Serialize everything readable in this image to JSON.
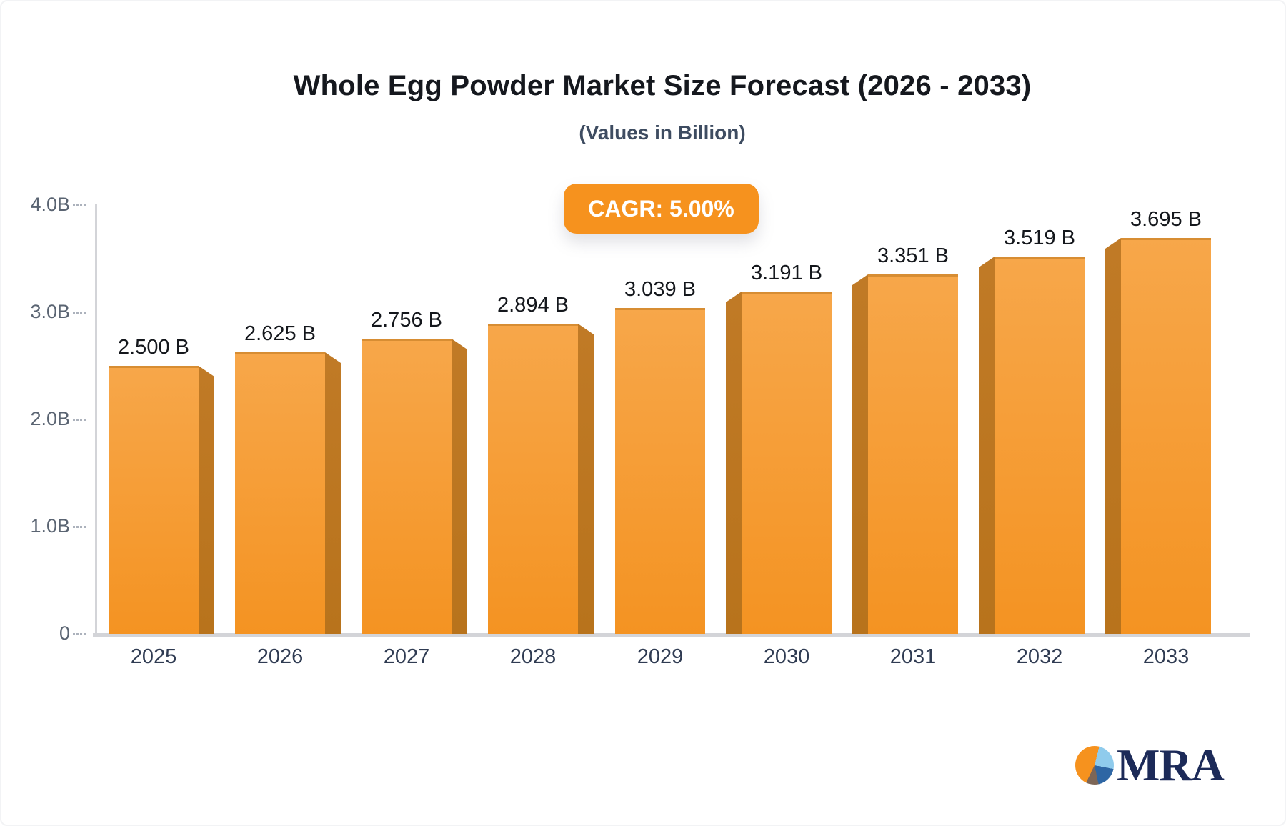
{
  "header": {
    "title": "Whole Egg Powder Market Size Forecast (2026 - 2033)",
    "subtitle": "(Values in Billion)"
  },
  "badge": {
    "label": "CAGR: 5.00%"
  },
  "chart_data": {
    "type": "bar",
    "title": "Whole Egg Powder Market Size Forecast (2026 - 2033)",
    "subtitle": "(Values in Billion)",
    "annotation": "CAGR: 5.00%",
    "categories": [
      "2025",
      "2026",
      "2027",
      "2028",
      "2029",
      "2030",
      "2031",
      "2032",
      "2033"
    ],
    "values": [
      2.5,
      2.625,
      2.756,
      2.894,
      3.039,
      3.191,
      3.351,
      3.519,
      3.695
    ],
    "value_labels": [
      "2.500 B",
      "2.625 B",
      "2.756 B",
      "2.894 B",
      "3.039 B",
      "3.191 B",
      "3.351 B",
      "3.519 B",
      "3.695 B"
    ],
    "xlabel": "",
    "ylabel": "",
    "ylim": [
      0,
      4
    ],
    "ytick_values": [
      0,
      1,
      2,
      3,
      4
    ],
    "ytick_labels": [
      "0",
      "1.0B",
      "2.0B",
      "3.0B",
      "4.0B"
    ],
    "grid": false,
    "legend": false,
    "bar_style": "3d-extruded",
    "extrusion_sides": [
      "right",
      "right",
      "right",
      "right",
      "none",
      "left",
      "left",
      "left",
      "left"
    ]
  },
  "colors": {
    "accent_orange": "#F6921E",
    "bar_face_top": "#F7A74A",
    "bar_face_bottom": "#F49322",
    "bar_side": "#B8731C",
    "axis_line": "#D3D4D8",
    "tick_dash": "#ACB2BC",
    "ytick_text": "#5A6472",
    "xtick_text": "#2F3B52",
    "value_label_text": "#14171C",
    "title_text": "#15181E",
    "subtitle_text": "#3E4C61",
    "logo_navy": "#1C2A58",
    "logo_light_blue": "#8FCBEC",
    "logo_blue": "#2E66A4",
    "logo_brown": "#7D6657"
  },
  "logo": {
    "text": "MRA"
  }
}
